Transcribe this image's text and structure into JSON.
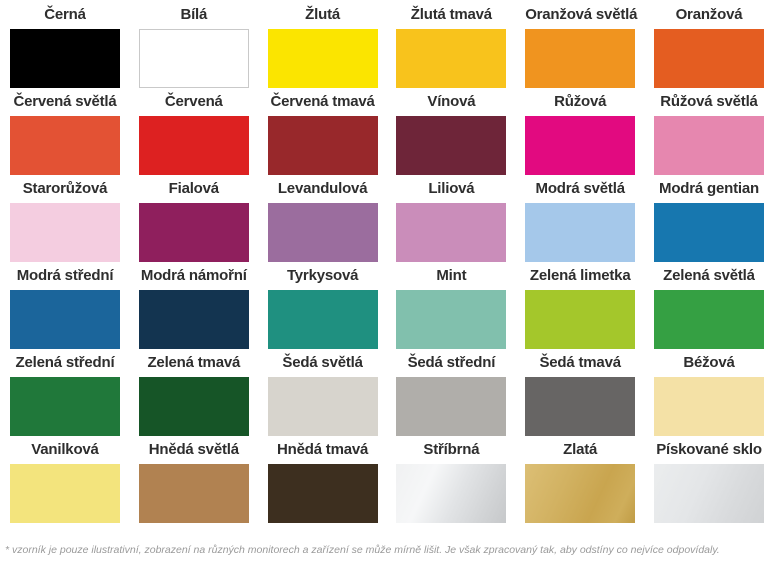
{
  "page": {
    "background": "#ffffff",
    "label_color": "#2e2e2e"
  },
  "footer": {
    "note": "* vzorník je pouze ilustrativní, zobrazení na různých monitorech a zařízení se může mírně lišit. Je však zpracovaný tak, aby odstíny co nejvíce odpovídaly."
  },
  "chart_data": {
    "type": "table",
    "title": "",
    "columns": 6,
    "rows": 6,
    "swatches": [
      {
        "label": "Černá",
        "color": "#000000"
      },
      {
        "label": "Bílá",
        "color": "#ffffff",
        "border": "#c9c9c9"
      },
      {
        "label": "Žlutá",
        "color": "#fbe500"
      },
      {
        "label": "Žlutá tmavá",
        "color": "#f8c31c"
      },
      {
        "label": "Oranžová světlá",
        "color": "#f0941f"
      },
      {
        "label": "Oranžová",
        "color": "#e45d21"
      },
      {
        "label": "Červená světlá",
        "color": "#e35234"
      },
      {
        "label": "Červená",
        "color": "#dd2121"
      },
      {
        "label": "Červená tmavá",
        "color": "#98282b"
      },
      {
        "label": "Vínová",
        "color": "#6e2539"
      },
      {
        "label": "Růžová",
        "color": "#e20a80"
      },
      {
        "label": "Růžová světlá",
        "color": "#e687af"
      },
      {
        "label": "Starorůžová",
        "color": "#f4cde0"
      },
      {
        "label": "Fialová",
        "color": "#8f1f5d"
      },
      {
        "label": "Levandulová",
        "color": "#9b6d9e"
      },
      {
        "label": "Liliová",
        "color": "#ca8dba"
      },
      {
        "label": "Modrá světlá",
        "color": "#a5c8ea"
      },
      {
        "label": "Modrá gentian",
        "color": "#1777af"
      },
      {
        "label": "Modrá střední",
        "color": "#1b659b"
      },
      {
        "label": "Modrá námořní",
        "color": "#133450"
      },
      {
        "label": "Tyrkysová",
        "color": "#1f9080"
      },
      {
        "label": "Mint",
        "color": "#81c0ad"
      },
      {
        "label": "Zelená limetka",
        "color": "#a4c72b"
      },
      {
        "label": "Zelená světlá",
        "color": "#35a043"
      },
      {
        "label": "Zelená střední",
        "color": "#20783a"
      },
      {
        "label": "Zelená tmavá",
        "color": "#165527"
      },
      {
        "label": "Šedá světlá",
        "color": "#d7d4cd"
      },
      {
        "label": "Šedá střední",
        "color": "#b0aeaa"
      },
      {
        "label": "Šedá tmavá",
        "color": "#676564"
      },
      {
        "label": "Béžová",
        "color": "#f4e1a6"
      },
      {
        "label": "Vanilková",
        "color": "#f3e47d"
      },
      {
        "label": "Hnědá světlá",
        "color": "#b18251"
      },
      {
        "label": "Hnědá tmavá",
        "color": "#3d2f1f"
      },
      {
        "label": "Stříbrná",
        "gradient": {
          "angle": "115deg",
          "stops": [
            "#f0f1f2 0%",
            "#f6f7f8 30%",
            "#e2e4e6 55%",
            "#d2d4d6 80%",
            "#c6c8ca 100%"
          ]
        }
      },
      {
        "label": "Zlatá",
        "gradient": {
          "angle": "115deg",
          "stops": [
            "#dcbf75 0%",
            "#d2b262 35%",
            "#c9a54f 65%",
            "#cfae5b 85%",
            "#c09c45 100%"
          ]
        }
      },
      {
        "label": "Pískované sklo",
        "gradient": {
          "angle": "115deg",
          "stops": [
            "#ebedee 0%",
            "#e4e6e8 40%",
            "#d9dbdd 70%",
            "#d0d2d4 100%"
          ]
        }
      }
    ]
  }
}
